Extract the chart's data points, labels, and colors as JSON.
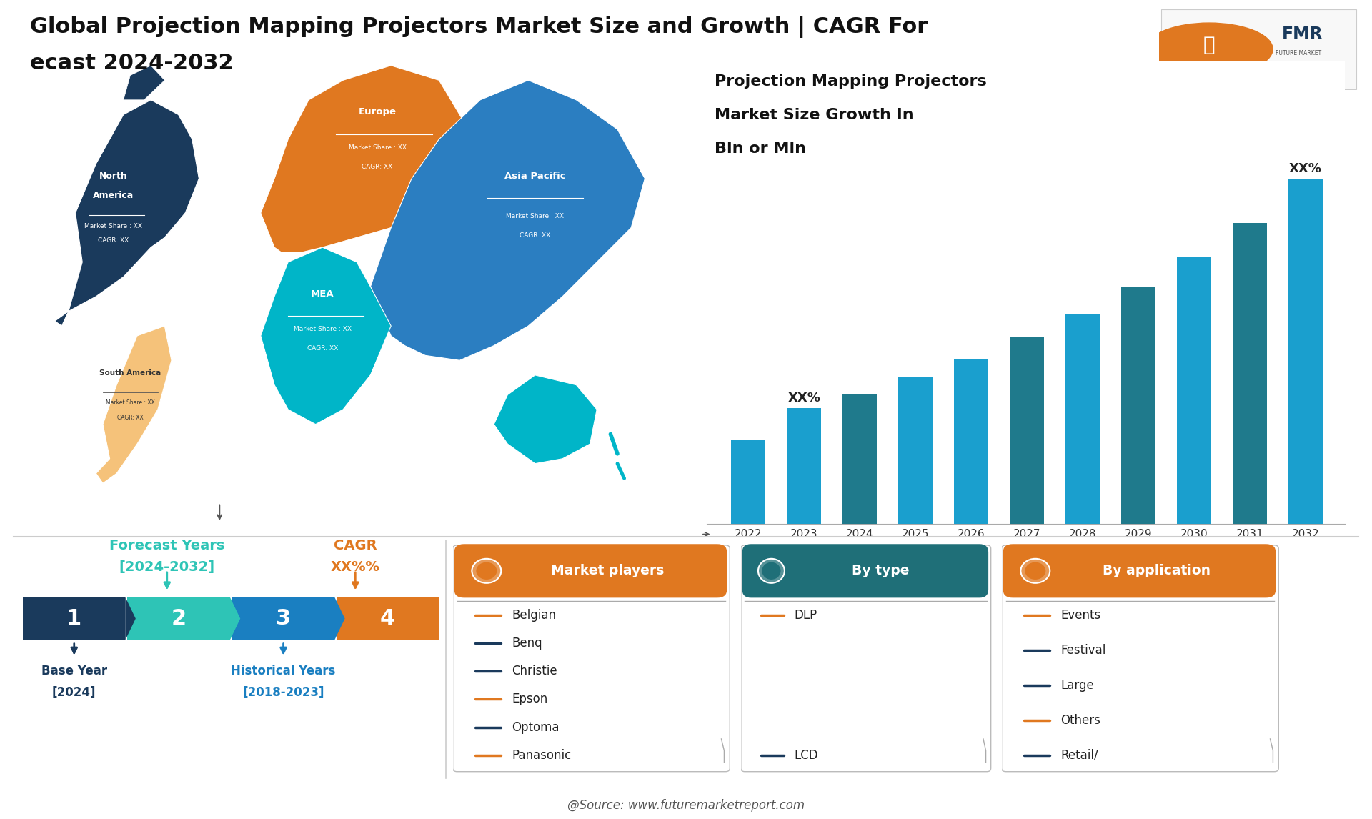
{
  "title_line1": "Global Projection Mapping Projectors Market Size and Growth | CAGR For",
  "title_line2": "ecast 2024-2032",
  "bar_years": [
    "2022",
    "2023",
    "2024",
    "2025",
    "2026",
    "2027",
    "2028",
    "2029",
    "2030",
    "2031",
    "2032"
  ],
  "bar_values": [
    1.0,
    1.38,
    1.55,
    1.75,
    1.97,
    2.22,
    2.5,
    2.82,
    3.18,
    3.58,
    4.1
  ],
  "bar_colors": [
    "#1a9fce",
    "#1a9fce",
    "#1f7a8c",
    "#1a9fce",
    "#1a9fce",
    "#1f7a8c",
    "#1a9fce",
    "#1f7a8c",
    "#1a9fce",
    "#1f7a8c",
    "#1a9fce"
  ],
  "chart_title_lines": [
    "Projection Mapping Projectors",
    "Market Size Growth In",
    "Bln or Mln"
  ],
  "bar_annot_1_idx": 1,
  "bar_annot_2_idx": 10,
  "bar_annot_text": "XX%",
  "forecast_color": "#2ec4b6",
  "cagr_color": "#e07820",
  "historical_color": "#1a7fc1",
  "base_year_color": "#1a3a5c",
  "step_colors": [
    "#1a3a5c",
    "#2ec4b6",
    "#1a7fc1",
    "#e07820"
  ],
  "step_numbers": [
    "1",
    "2",
    "3",
    "4"
  ],
  "market_players_label": "Market players",
  "market_players_color": "#e07820",
  "market_players": [
    "Belgian",
    "Benq",
    "Christie",
    "Epson",
    "Optoma",
    "Panasonic"
  ],
  "mp_dash_colors": [
    "#e07820",
    "#1a3a5c",
    "#1a3a5c",
    "#e07820",
    "#1a3a5c",
    "#e07820"
  ],
  "by_type_label": "By type",
  "by_type_color": "#1f6f78",
  "by_type": [
    "DLP",
    "LCD"
  ],
  "bt_dash_colors": [
    "#e07820",
    "#1a3a5c"
  ],
  "by_application_label": "By application",
  "by_application_color": "#e07820",
  "by_application": [
    "Events",
    "Festival",
    "Large",
    "Others",
    "Retail/"
  ],
  "ba_dash_colors": [
    "#e07820",
    "#1a3a5c",
    "#1a3a5c",
    "#e07820",
    "#1a3a5c"
  ],
  "source_text": "@Source: www.futuremarketreport.com",
  "bg_color": "#ffffff",
  "title_color": "#111111",
  "map_bg": "#e8f4fa",
  "na_color": "#1a3a5c",
  "eu_color": "#e07820",
  "mea_color": "#00b5c8",
  "ap_color": "#2b7ec1",
  "sa_color": "#f5c27a",
  "au_color": "#00b5c8"
}
